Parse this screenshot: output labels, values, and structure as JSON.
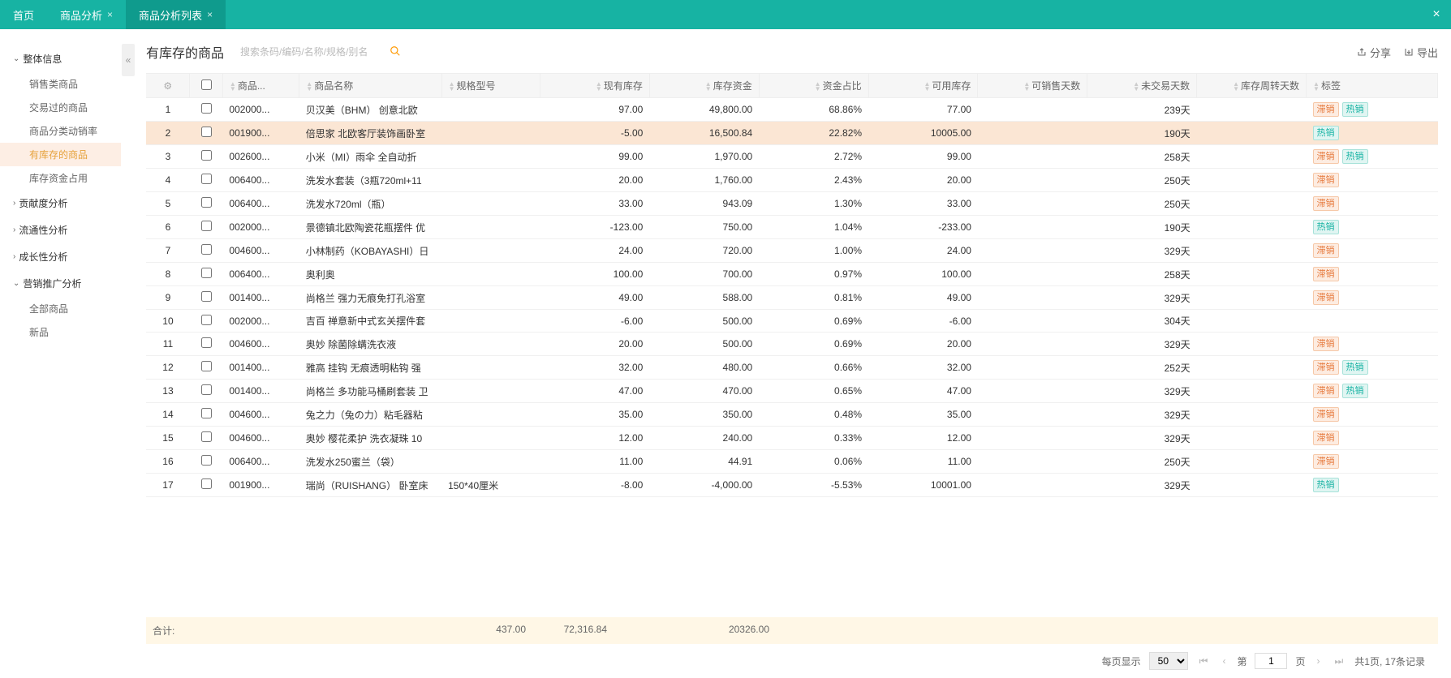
{
  "tabs": [
    {
      "label": "首页",
      "closable": false,
      "active": false
    },
    {
      "label": "商品分析",
      "closable": true,
      "active": false
    },
    {
      "label": "商品分析列表",
      "closable": true,
      "active": true
    }
  ],
  "sidebar": {
    "groups": [
      {
        "label": "整体信息",
        "expanded": true,
        "items": [
          {
            "label": "销售类商品",
            "active": false
          },
          {
            "label": "交易过的商品",
            "active": false
          },
          {
            "label": "商品分类动销率",
            "active": false
          },
          {
            "label": "有库存的商品",
            "active": true
          },
          {
            "label": "库存资金占用",
            "active": false
          }
        ]
      },
      {
        "label": "贡献度分析",
        "expanded": false,
        "items": []
      },
      {
        "label": "流通性分析",
        "expanded": false,
        "items": []
      },
      {
        "label": "成长性分析",
        "expanded": false,
        "items": []
      },
      {
        "label": "营销推广分析",
        "expanded": true,
        "items": [
          {
            "label": "全部商品",
            "active": false
          },
          {
            "label": "新品",
            "active": false
          }
        ]
      }
    ]
  },
  "page": {
    "title": "有库存的商品",
    "search_placeholder": "搜索条码/编码/名称/规格/别名",
    "share_label": "分享",
    "export_label": "导出"
  },
  "columns": [
    {
      "key": "idx",
      "label": "",
      "type": "gear"
    },
    {
      "key": "chk",
      "label": "",
      "type": "checkbox"
    },
    {
      "key": "code",
      "label": "商品...",
      "sortable": true
    },
    {
      "key": "name",
      "label": "商品名称",
      "sortable": true
    },
    {
      "key": "spec",
      "label": "规格型号",
      "sortable": true
    },
    {
      "key": "stock",
      "label": "现有库存",
      "sortable": true,
      "align": "right"
    },
    {
      "key": "amount",
      "label": "库存资金",
      "sortable": true,
      "align": "right"
    },
    {
      "key": "pct",
      "label": "资金占比",
      "sortable": true,
      "align": "right"
    },
    {
      "key": "avail",
      "label": "可用库存",
      "sortable": true,
      "align": "right"
    },
    {
      "key": "saledays",
      "label": "可销售天数",
      "sortable": true,
      "align": "right"
    },
    {
      "key": "notrade",
      "label": "未交易天数",
      "sortable": true,
      "align": "right"
    },
    {
      "key": "turnover",
      "label": "库存周转天数",
      "sortable": true,
      "align": "right"
    },
    {
      "key": "tags",
      "label": "标签",
      "sortable": true
    }
  ],
  "rows": [
    {
      "idx": 1,
      "code": "002000...",
      "name": "贝汉美（BHM） 创意北欧",
      "spec": "",
      "stock": "97.00",
      "amount": "49,800.00",
      "pct": "68.86%",
      "avail": "77.00",
      "saledays": "",
      "notrade": "239天",
      "turnover": "",
      "tags": [
        "滞销",
        "热销"
      ],
      "highlight": false
    },
    {
      "idx": 2,
      "code": "001900...",
      "name": "倍思家 北欧客厅装饰画卧室",
      "spec": "",
      "stock": "-5.00",
      "amount": "16,500.84",
      "pct": "22.82%",
      "avail": "10005.00",
      "saledays": "",
      "notrade": "190天",
      "turnover": "",
      "tags": [
        "热销"
      ],
      "highlight": true
    },
    {
      "idx": 3,
      "code": "002600...",
      "name": "小米（MI）雨伞 全自动折",
      "spec": "",
      "stock": "99.00",
      "amount": "1,970.00",
      "pct": "2.72%",
      "avail": "99.00",
      "saledays": "",
      "notrade": "258天",
      "turnover": "",
      "tags": [
        "滞销",
        "热销"
      ],
      "highlight": false
    },
    {
      "idx": 4,
      "code": "006400...",
      "name": "洗发水套装（3瓶720ml+11",
      "spec": "",
      "stock": "20.00",
      "amount": "1,760.00",
      "pct": "2.43%",
      "avail": "20.00",
      "saledays": "",
      "notrade": "250天",
      "turnover": "",
      "tags": [
        "滞销"
      ],
      "highlight": false
    },
    {
      "idx": 5,
      "code": "006400...",
      "name": "洗发水720ml（瓶）",
      "spec": "",
      "stock": "33.00",
      "amount": "943.09",
      "pct": "1.30%",
      "avail": "33.00",
      "saledays": "",
      "notrade": "250天",
      "turnover": "",
      "tags": [
        "滞销"
      ],
      "highlight": false
    },
    {
      "idx": 6,
      "code": "002000...",
      "name": "景德镇北欧陶瓷花瓶摆件 优",
      "spec": "",
      "stock": "-123.00",
      "amount": "750.00",
      "pct": "1.04%",
      "avail": "-233.00",
      "saledays": "",
      "notrade": "190天",
      "turnover": "",
      "tags": [
        "热销"
      ],
      "highlight": false
    },
    {
      "idx": 7,
      "code": "004600...",
      "name": "小林制药（KOBAYASHI）日",
      "spec": "",
      "stock": "24.00",
      "amount": "720.00",
      "pct": "1.00%",
      "avail": "24.00",
      "saledays": "",
      "notrade": "329天",
      "turnover": "",
      "tags": [
        "滞销"
      ],
      "highlight": false
    },
    {
      "idx": 8,
      "code": "006400...",
      "name": "奥利奥",
      "spec": "",
      "stock": "100.00",
      "amount": "700.00",
      "pct": "0.97%",
      "avail": "100.00",
      "saledays": "",
      "notrade": "258天",
      "turnover": "",
      "tags": [
        "滞销"
      ],
      "highlight": false
    },
    {
      "idx": 9,
      "code": "001400...",
      "name": "尚格兰 强力无痕免打孔浴室",
      "spec": "",
      "stock": "49.00",
      "amount": "588.00",
      "pct": "0.81%",
      "avail": "49.00",
      "saledays": "",
      "notrade": "329天",
      "turnover": "",
      "tags": [
        "滞销"
      ],
      "highlight": false
    },
    {
      "idx": 10,
      "code": "002000...",
      "name": "吉百 禅意新中式玄关摆件套",
      "spec": "",
      "stock": "-6.00",
      "amount": "500.00",
      "pct": "0.69%",
      "avail": "-6.00",
      "saledays": "",
      "notrade": "304天",
      "turnover": "",
      "tags": [],
      "highlight": false
    },
    {
      "idx": 11,
      "code": "004600...",
      "name": "奥妙 除菌除螨洗衣液",
      "spec": "",
      "stock": "20.00",
      "amount": "500.00",
      "pct": "0.69%",
      "avail": "20.00",
      "saledays": "",
      "notrade": "329天",
      "turnover": "",
      "tags": [
        "滞销"
      ],
      "highlight": false
    },
    {
      "idx": 12,
      "code": "001400...",
      "name": "雅高 挂钩 无痕透明粘钩 强",
      "spec": "",
      "stock": "32.00",
      "amount": "480.00",
      "pct": "0.66%",
      "avail": "32.00",
      "saledays": "",
      "notrade": "252天",
      "turnover": "",
      "tags": [
        "滞销",
        "热销"
      ],
      "highlight": false
    },
    {
      "idx": 13,
      "code": "001400...",
      "name": "尚格兰 多功能马桶刷套装 卫",
      "spec": "",
      "stock": "47.00",
      "amount": "470.00",
      "pct": "0.65%",
      "avail": "47.00",
      "saledays": "",
      "notrade": "329天",
      "turnover": "",
      "tags": [
        "滞销",
        "热销"
      ],
      "highlight": false
    },
    {
      "idx": 14,
      "code": "004600...",
      "name": "兔之力（兔の力）粘毛器粘",
      "spec": "",
      "stock": "35.00",
      "amount": "350.00",
      "pct": "0.48%",
      "avail": "35.00",
      "saledays": "",
      "notrade": "329天",
      "turnover": "",
      "tags": [
        "滞销"
      ],
      "highlight": false
    },
    {
      "idx": 15,
      "code": "004600...",
      "name": "奥妙 樱花柔护 洗衣凝珠 10",
      "spec": "",
      "stock": "12.00",
      "amount": "240.00",
      "pct": "0.33%",
      "avail": "12.00",
      "saledays": "",
      "notrade": "329天",
      "turnover": "",
      "tags": [
        "滞销"
      ],
      "highlight": false
    },
    {
      "idx": 16,
      "code": "006400...",
      "name": "洗发水250蜜兰（袋）",
      "spec": "",
      "stock": "11.00",
      "amount": "44.91",
      "pct": "0.06%",
      "avail": "11.00",
      "saledays": "",
      "notrade": "250天",
      "turnover": "",
      "tags": [
        "滞销"
      ],
      "highlight": false
    },
    {
      "idx": 17,
      "code": "001900...",
      "name": "瑞尚（RUISHANG） 卧室床",
      "spec": "150*40厘米",
      "stock": "-8.00",
      "amount": "-4,000.00",
      "pct": "-5.53%",
      "avail": "10001.00",
      "saledays": "",
      "notrade": "329天",
      "turnover": "",
      "tags": [
        "热销"
      ],
      "highlight": false
    }
  ],
  "summary": {
    "label": "合计:",
    "stock": "437.00",
    "amount": "72,316.84",
    "avail": "20326.00"
  },
  "pager": {
    "per_page_label": "每页显示",
    "per_page_value": "50",
    "page_label_prefix": "第",
    "page_value": "1",
    "page_label_suffix": "页",
    "total_text": "共1页, 17条记录"
  },
  "tag_styles": {
    "滞销": "badge-orange",
    "热销": "badge-teal"
  }
}
